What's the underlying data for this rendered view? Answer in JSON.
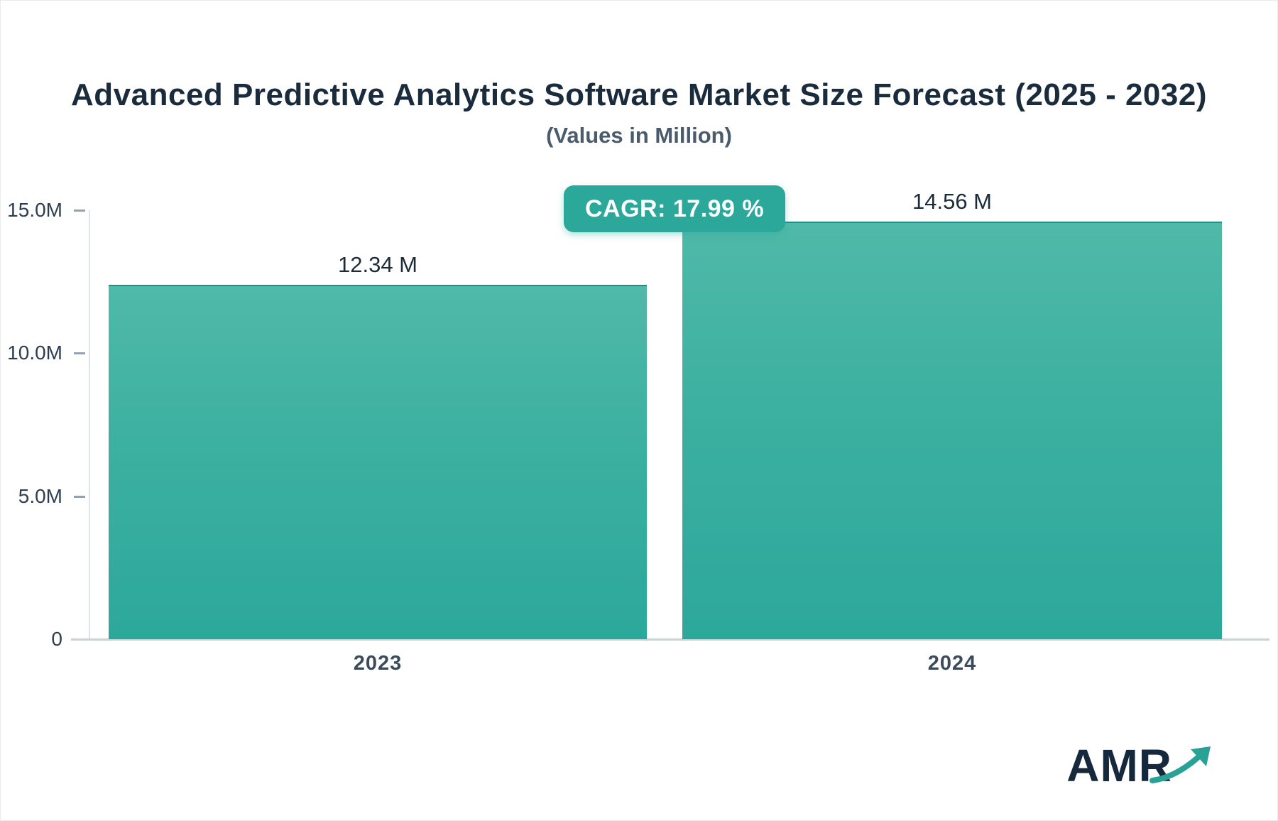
{
  "chart_data": {
    "type": "bar",
    "title": "Advanced Predictive Analytics Software Market Size Forecast (2025 - 2032)",
    "subtitle": "(Values in Million)",
    "categories": [
      "2023",
      "2024"
    ],
    "values": [
      12.34,
      14.56
    ],
    "value_labels": [
      "12.34 M",
      "14.56 M"
    ],
    "unit": "Million",
    "ylim": [
      0,
      15
    ],
    "yticks": [
      0,
      5,
      10,
      15
    ],
    "ytick_labels": [
      "0",
      "5.0M",
      "10.0M",
      "15.0M"
    ],
    "cagr_label": "CAGR: 17.99 %",
    "grid": "off",
    "legend": "none",
    "colors": {
      "bar_top": "#50b9a8",
      "bar_bottom": "#2ca89b",
      "badge_background": "#2ba89a",
      "badge_text": "#ffffff",
      "title_text": "#1a2b3c",
      "subtitle_text": "#4a5b6b",
      "axis_text": "#2f3e4e"
    }
  },
  "branding": {
    "logo_text": "AMR"
  }
}
